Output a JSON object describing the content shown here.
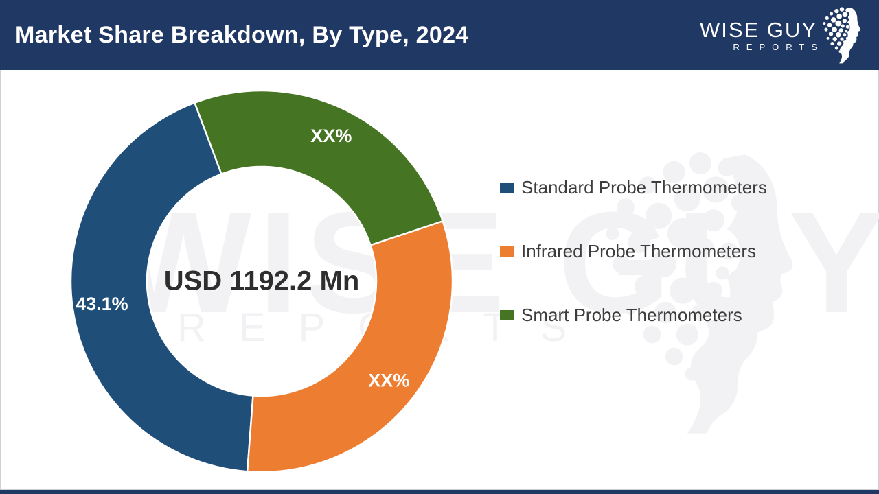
{
  "header": {
    "title": "Market Share Breakdown, By Type, 2024",
    "logo": {
      "name_line": "WISE GUY",
      "sub_line": "REPORTS"
    }
  },
  "watermark": {
    "name_line": "WISE GUY",
    "sub_line": "REPORTS"
  },
  "colors": {
    "header_bg": "#203864",
    "footer_bg": "#203864",
    "body_border": "#cdd1d6",
    "watermark": "#f2f2f4",
    "center_text": "#2e2e2e",
    "legend_text": "#3d3d3d"
  },
  "chart_data": {
    "type": "pie",
    "subtype": "donut",
    "title": "Market Share Breakdown, By Type, 2024",
    "center_label": "USD 1192.2 Mn",
    "hole_ratio": 0.6,
    "rotation_deg": 184.3,
    "direction": "clockwise",
    "legend_position": "right",
    "grid": false,
    "draw_order": [
      0,
      2,
      1
    ],
    "series": [
      {
        "name": "Standard Probe Thermometers",
        "value_pct": 43.1,
        "display_label": "43.1%",
        "color": "#1f4e79"
      },
      {
        "name": "Infrared Probe Thermometers",
        "value_pct": 31.3,
        "display_label": "XX%",
        "color": "#ed7d31"
      },
      {
        "name": "Smart Probe Thermometers",
        "value_pct": 25.6,
        "display_label": "XX%",
        "color": "#457523"
      }
    ]
  }
}
